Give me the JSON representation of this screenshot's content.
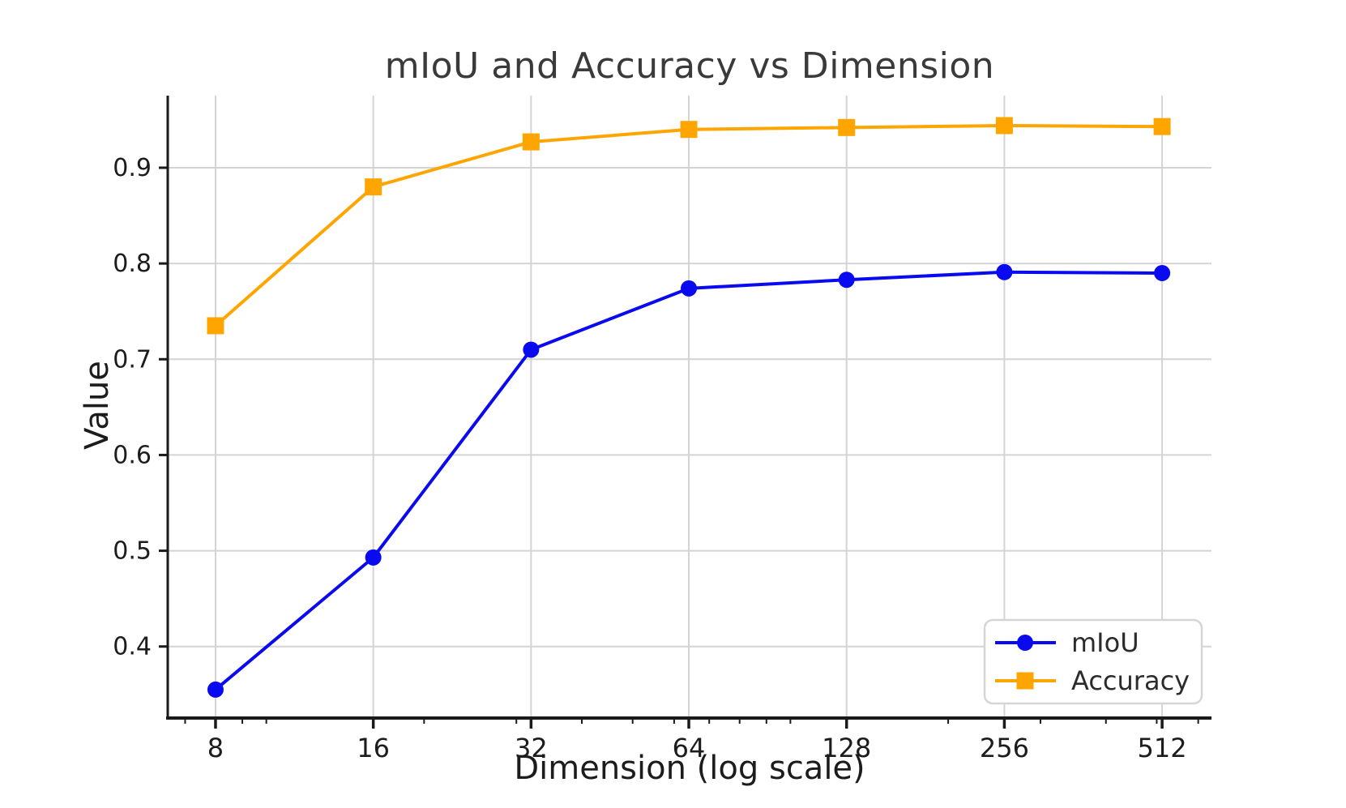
{
  "figure": {
    "title": "mIoU and Accuracy vs Dimension",
    "xlabel": "Dimension (log scale)",
    "ylabel": "Value"
  },
  "chart_data": {
    "type": "line",
    "title": "mIoU and Accuracy vs Dimension",
    "xlabel": "Dimension (log scale)",
    "ylabel": "Value",
    "x_scale": "log2",
    "x": [
      8,
      16,
      32,
      64,
      128,
      256,
      512
    ],
    "series": [
      {
        "name": "mIoU",
        "color": "#0a0af0",
        "marker": "circle",
        "values": [
          0.355,
          0.493,
          0.71,
          0.774,
          0.783,
          0.791,
          0.79
        ]
      },
      {
        "name": "Accuracy",
        "color": "#ffa500",
        "marker": "square",
        "values": [
          0.735,
          0.88,
          0.927,
          0.94,
          0.942,
          0.944,
          0.943
        ]
      }
    ],
    "x_tick_labels": [
      "8",
      "16",
      "32",
      "64",
      "128",
      "256",
      "512"
    ],
    "x_minor_ticks": [
      7,
      9,
      10,
      20,
      30,
      40,
      50,
      60,
      70,
      80,
      90,
      100,
      200,
      300,
      400,
      500,
      600
    ],
    "y_ticks": [
      0.4,
      0.5,
      0.6,
      0.7,
      0.8,
      0.9
    ],
    "y_tick_labels": [
      "0.4",
      "0.5",
      "0.6",
      "0.7",
      "0.8",
      "0.9"
    ],
    "xlim": [
      6.485,
      636.0
    ],
    "ylim": [
      0.3253,
      0.9753
    ],
    "grid": true,
    "legend_position": "lower right",
    "style": {
      "grid_color": "#d4d4d4",
      "spine_color": "#1a1a1a",
      "tick_label_color": "#1c1c1c",
      "legend_border_color": "#d5d5d5",
      "legend_fill": "#ffffff",
      "background": "#ffffff"
    }
  }
}
